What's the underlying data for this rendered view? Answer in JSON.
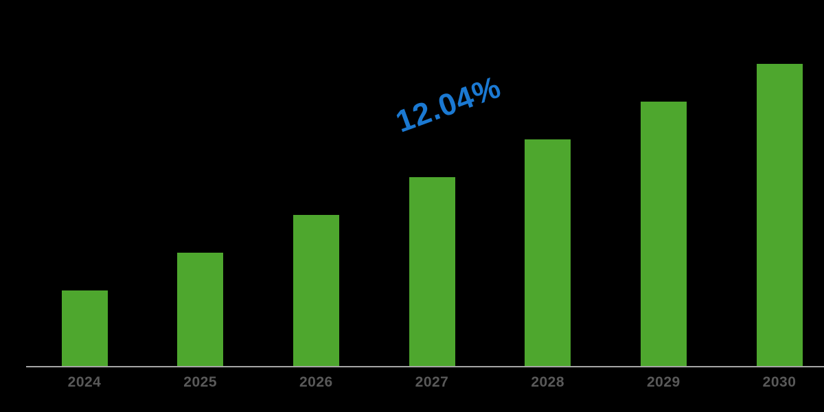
{
  "chart_data": {
    "type": "bar",
    "title": "",
    "categories": [
      "2024",
      "2025",
      "2026",
      "2027",
      "2028",
      "2029",
      "2030"
    ],
    "values": [
      110,
      165,
      220,
      275,
      330,
      385,
      440
    ],
    "value_units": "relative height (no y-axis scale shown in image)",
    "annotation_text": "12.04%",
    "xlabel": "",
    "ylabel": "",
    "legend": "none",
    "gridlines": false,
    "y_axis_visible": false,
    "colors": {
      "background": "#000000",
      "bar": "#4ea72e",
      "annotation": "#1b79d2",
      "axis_line": "#a6a6a6",
      "tick_label": "#595959"
    }
  }
}
